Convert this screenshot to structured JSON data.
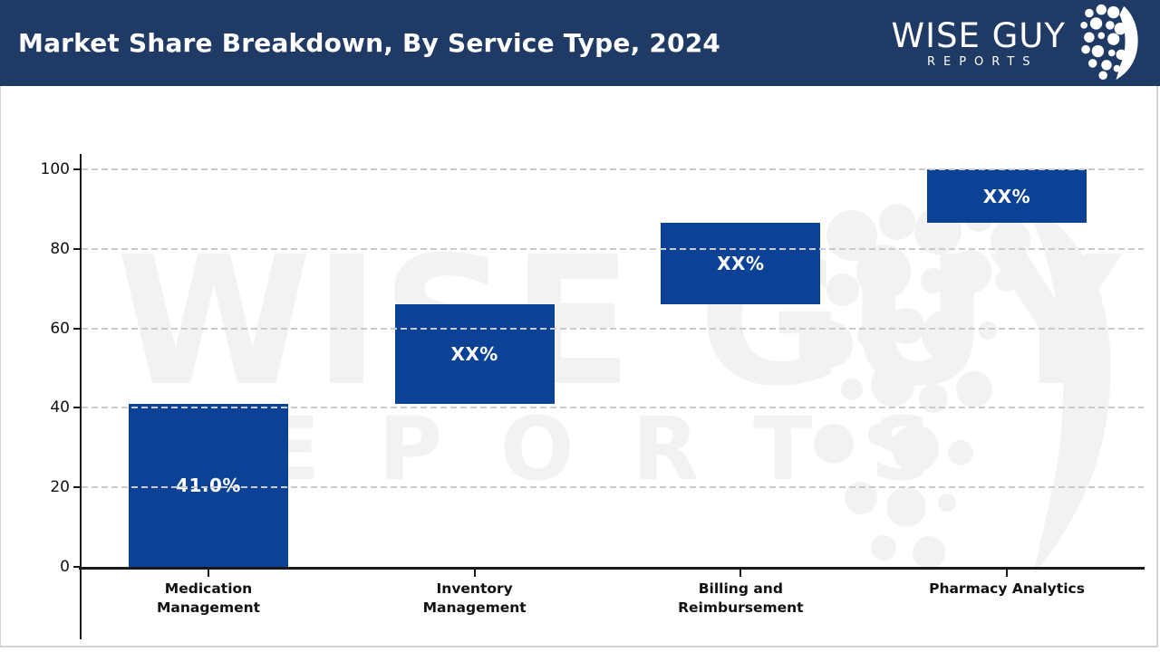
{
  "header": {
    "title": "Market Share Breakdown, By Service Type, 2024",
    "logo": {
      "line1": "WISE GUY",
      "line2": "REPORTS"
    }
  },
  "watermark": {
    "line1": "WISE GUY",
    "line2": "REPORTS"
  },
  "chart_data": {
    "type": "bar",
    "subtype": "waterfall",
    "title": "Market Share Breakdown, By Service Type, 2024",
    "categories": [
      "Medication\nManagement",
      "Inventory\nManagement",
      "Billing and\nReimbursement",
      "Pharmacy Analytics"
    ],
    "bars": [
      {
        "category": "Medication Management",
        "start": 0,
        "end": 41,
        "label": "41.0%"
      },
      {
        "category": "Inventory Management",
        "start": 41,
        "end": 66,
        "label": "XX%"
      },
      {
        "category": "Billing and Reimbursement",
        "start": 66,
        "end": 86.5,
        "label": "XX%"
      },
      {
        "category": "Pharmacy Analytics",
        "start": 86.5,
        "end": 100,
        "label": "XX%"
      }
    ],
    "xlabel": "",
    "ylabel": "",
    "ylim": [
      0,
      100
    ],
    "yticks": [
      0,
      20,
      40,
      60,
      80,
      100
    ],
    "grid": "horizontal-dashed-over-bars",
    "legend": "none",
    "colors": {
      "bar": "#0b4295",
      "grid": "#cbcbcb",
      "axis": "#1a1a1a",
      "header_bg": "#203a66",
      "bar_label": "#ffffff",
      "watermark": "#f2f2f2"
    }
  }
}
